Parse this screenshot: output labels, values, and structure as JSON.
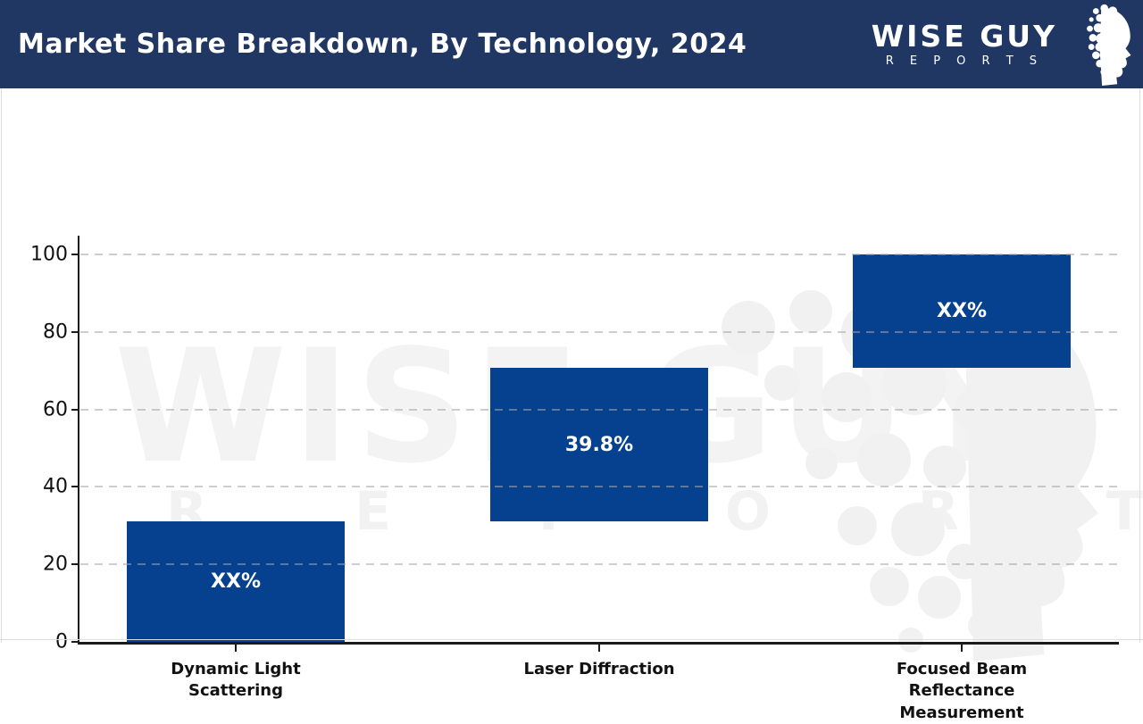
{
  "header": {
    "title": "Market Share Breakdown, By Technology, 2024",
    "logo": {
      "line1": "WISE GUY",
      "line2": "R E P O R T S"
    }
  },
  "watermark": {
    "line1": "WISE GUY",
    "line2": "R E P O R T S"
  },
  "chart_data": {
    "type": "bar",
    "subtype": "segmented-stacked-waterfall",
    "title": "Market Share Breakdown, By Technology, 2024",
    "categories": [
      "Dynamic Light\nScattering",
      "Laser Diffraction",
      "Focused Beam\nReflectance\nMeasurement"
    ],
    "bars": [
      {
        "category": "Dynamic Light Scattering",
        "start": 0,
        "end": 31,
        "label": "XX%"
      },
      {
        "category": "Laser Diffraction",
        "start": 31,
        "end": 70.8,
        "label": "39.8%"
      },
      {
        "category": "Focused Beam Reflectance Measurement",
        "start": 70.8,
        "end": 100,
        "label": "XX%"
      }
    ],
    "xlabel": "",
    "ylabel": "",
    "ylim": [
      0,
      100
    ],
    "yticks": [
      0,
      20,
      40,
      60,
      80,
      100
    ],
    "grid": "horizontal-dashed",
    "legend": "none",
    "colors": {
      "bar": "#05418f",
      "header_bg": "#203764",
      "grid": "#d9d9d9",
      "axis": "#1a1a1a",
      "watermark": "#f2f2f2"
    }
  }
}
